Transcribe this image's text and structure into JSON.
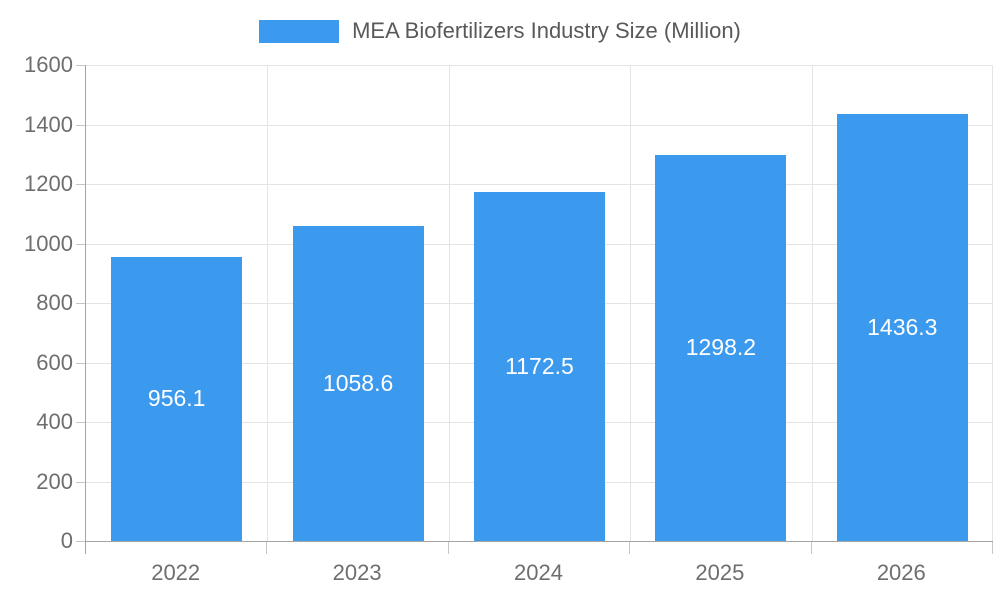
{
  "legend": {
    "label": "MEA Biofertilizers Industry Size (Million)"
  },
  "chart_data": {
    "type": "bar",
    "title": "MEA Biofertilizers Industry Size (Million)",
    "series_name": "MEA Biofertilizers Industry Size (Million)",
    "categories": [
      "2022",
      "2023",
      "2024",
      "2025",
      "2026"
    ],
    "values": [
      956.1,
      1058.6,
      1172.5,
      1298.2,
      1436.3
    ],
    "value_labels": [
      "956.1",
      "1058.6",
      "1172.5",
      "1298.2",
      "1436.3"
    ],
    "xlabel": "",
    "ylabel": "",
    "ylim": [
      0,
      1600
    ],
    "ytick_step": 200,
    "yticks": [
      0,
      200,
      400,
      600,
      800,
      1000,
      1200,
      1400,
      1600
    ],
    "grid": true,
    "legend_position": "top",
    "bar_color": "#3B99EE",
    "value_label_color": "#ffffff",
    "background_color": "#ffffff"
  }
}
